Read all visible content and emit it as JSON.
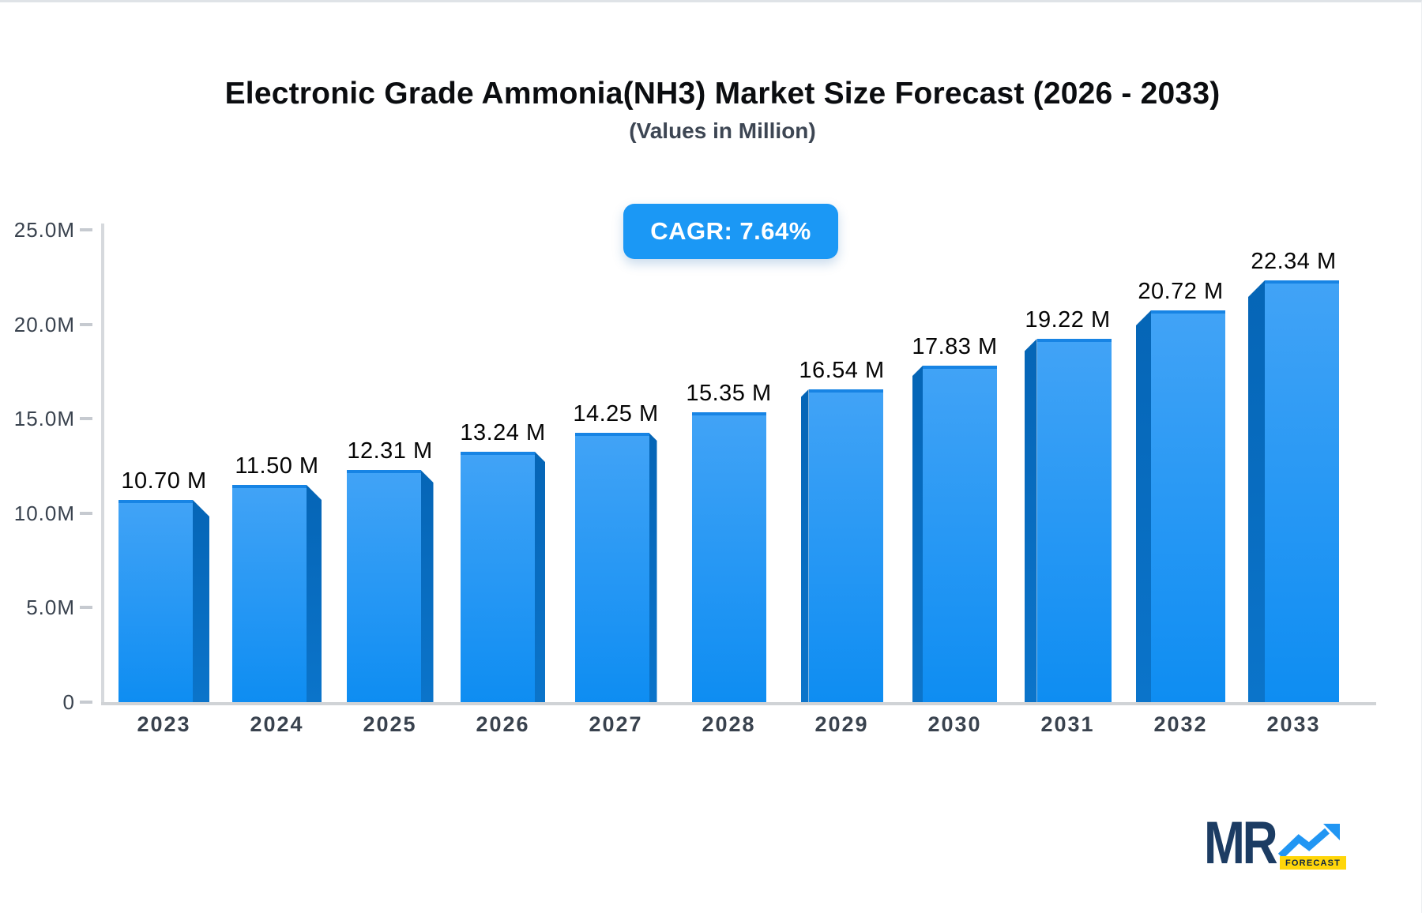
{
  "chart_data": {
    "type": "bar",
    "title": "Electronic Grade Ammonia(NH3) Market Size Forecast (2026 - 2033)",
    "subtitle": "(Values in Million)",
    "cagr_badge": "CAGR: 7.64%",
    "categories": [
      "2023",
      "2024",
      "2025",
      "2026",
      "2027",
      "2028",
      "2029",
      "2030",
      "2031",
      "2032",
      "2033"
    ],
    "values": [
      10.7,
      11.5,
      12.31,
      13.24,
      14.25,
      15.35,
      16.54,
      17.83,
      19.22,
      20.72,
      22.34
    ],
    "bar_labels": [
      "10.70 M",
      "11.50 M",
      "12.31 M",
      "13.24 M",
      "14.25 M",
      "15.35 M",
      "16.54 M",
      "17.83 M",
      "19.22 M",
      "20.72 M",
      "22.34 M"
    ],
    "xlabel": "",
    "ylabel": "",
    "ylim": [
      0,
      25
    ],
    "grid": false,
    "legend": false,
    "yaxis": {
      "tick_labels": [
        "25.0M",
        "20.0M",
        "15.0M",
        "10.0M",
        "5.0M",
        "0"
      ],
      "tick_values": [
        25,
        20,
        15,
        10,
        5,
        0
      ]
    },
    "colors": {
      "bar_face_top": "#41a3f6",
      "bar_face_bottom": "#0e8df2",
      "bar_top_edge": "#1784e4",
      "bar_side_top": "#0565b6",
      "bar_side_bottom": "#0b74ca",
      "badge_bg": "#1b98f5",
      "axis_line": "#d2d5da",
      "axis_text": "#39424e",
      "value_text": "#050505"
    }
  },
  "logo": {
    "mr": "MR",
    "forecast": "FORECAST",
    "colors": {
      "navy": "#1c3c63",
      "blue": "#2196f3",
      "yellow": "#ffd60a"
    }
  }
}
